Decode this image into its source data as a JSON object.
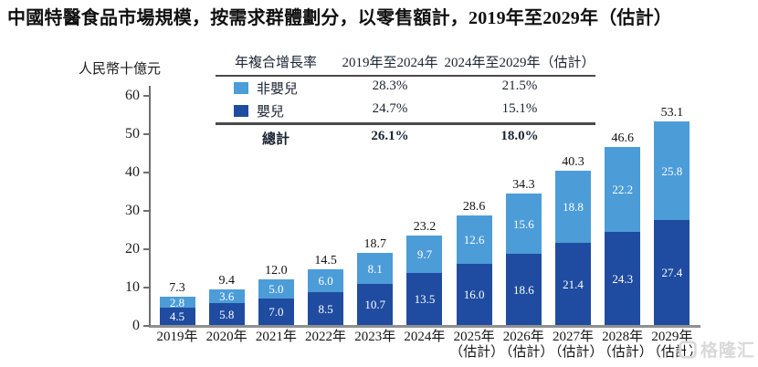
{
  "page": {
    "title": "中國特醫食品市場規模，按需求群體劃分，以零售額計，2019年至2029年（估計）",
    "watermark": "格隆汇"
  },
  "chart_data": {
    "type": "bar",
    "stacked": true,
    "title": "中國特醫食品市場規模，按需求群體劃分，以零售額計，2019年至2029年（估計）",
    "ylabel": "人民幣十億元",
    "ylim": [
      0,
      60
    ],
    "yticks": [
      0,
      10,
      20,
      30,
      40,
      50,
      60
    ],
    "grid": false,
    "legend_position": "top-table",
    "categories": [
      "2019年",
      "2020年",
      "2021年",
      "2022年",
      "2023年",
      "2024年",
      "2025年（估計）",
      "2026年（估計）",
      "2027年（估計）",
      "2028年（估計）",
      "2029年（估計）"
    ],
    "series": [
      {
        "name": "嬰兒",
        "color": "#1F4CA0",
        "values": [
          4.5,
          5.8,
          7.0,
          8.5,
          10.7,
          13.5,
          16.0,
          18.6,
          21.4,
          24.3,
          27.4
        ]
      },
      {
        "name": "非嬰兒",
        "color": "#4C9CD8",
        "values": [
          2.8,
          3.6,
          5.0,
          6.0,
          8.1,
          9.7,
          12.6,
          15.6,
          18.8,
          22.2,
          25.8
        ]
      }
    ],
    "totals": [
      7.3,
      9.4,
      12.0,
      14.5,
      18.7,
      23.2,
      28.6,
      34.3,
      40.3,
      46.6,
      53.1
    ]
  },
  "cagr_table": {
    "header": [
      "年複合增長率",
      "2019年至2024年",
      "2024年至2029年（估計）"
    ],
    "rows": [
      {
        "label": "非嬰兒",
        "swatch": "#4C9CD8",
        "c1": "28.3%",
        "c2": "21.5%"
      },
      {
        "label": "嬰兒",
        "swatch": "#1F4CA0",
        "c1": "24.7%",
        "c2": "15.1%"
      }
    ],
    "total": {
      "label": "總計",
      "c1": "26.1%",
      "c2": "18.0%"
    }
  }
}
